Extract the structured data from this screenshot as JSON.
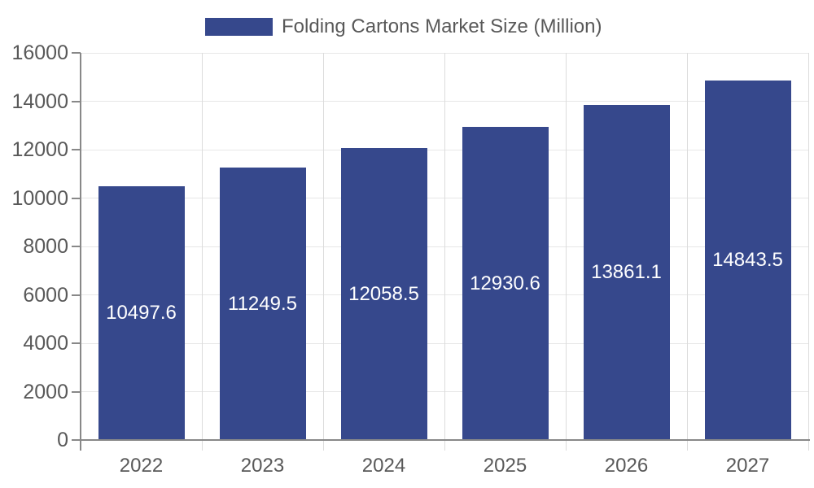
{
  "colors": {
    "bar": "#36488C",
    "axis": "#888888",
    "grid_horizontal": "#e7e7e7",
    "grid_vertical": "#dcdcdc",
    "tick_label_text": "#595959",
    "value_label_text": "#ffffff",
    "background": "#ffffff"
  },
  "chart_data": {
    "type": "bar",
    "title": "Folding Cartons Market Size (Million)",
    "categories": [
      "2022",
      "2023",
      "2024",
      "2025",
      "2026",
      "2027"
    ],
    "values": [
      10497.6,
      11249.5,
      12058.5,
      12930.6,
      13861.1,
      14843.5
    ],
    "xlabel": "",
    "ylabel": "",
    "ylim": [
      0,
      16000
    ],
    "ytick_step": 2000,
    "ytick_labels": [
      "0",
      "2000",
      "4000",
      "6000",
      "8000",
      "10000",
      "12000",
      "14000",
      "16000"
    ],
    "grid": true,
    "legend_position": "top-center",
    "value_labels": "centered-inside-bars-white"
  }
}
